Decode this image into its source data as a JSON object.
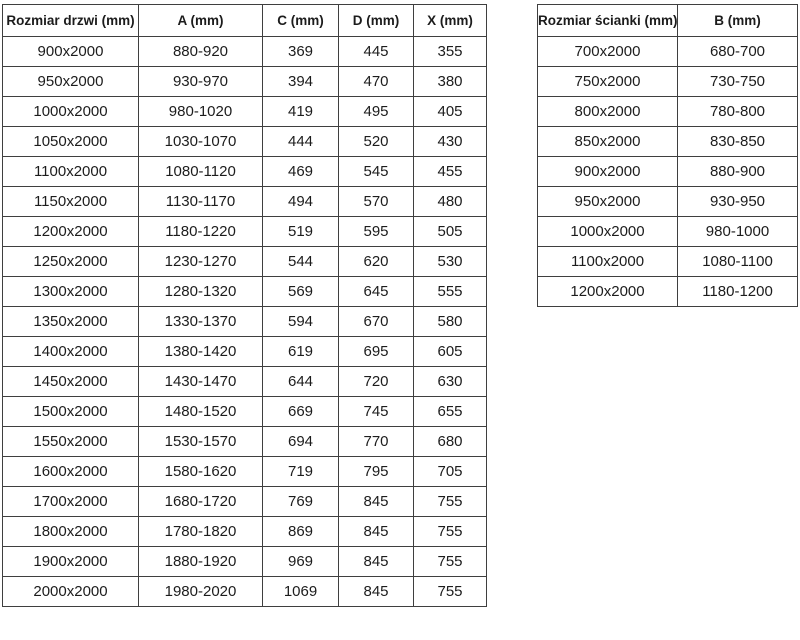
{
  "colors": {
    "background": "#ffffff",
    "border": "#3f3f3f",
    "text": "#1c1c1c"
  },
  "tables": [
    {
      "id": "door-sizes",
      "headers": [
        "Rozmiar drzwi (mm)",
        "A (mm)",
        "C (mm)",
        "D (mm)",
        "X (mm)"
      ],
      "rows": [
        [
          "900x2000",
          "880-920",
          "369",
          "445",
          "355"
        ],
        [
          "950x2000",
          "930-970",
          "394",
          "470",
          "380"
        ],
        [
          "1000x2000",
          "980-1020",
          "419",
          "495",
          "405"
        ],
        [
          "1050x2000",
          "1030-1070",
          "444",
          "520",
          "430"
        ],
        [
          "1100x2000",
          "1080-1120",
          "469",
          "545",
          "455"
        ],
        [
          "1150x2000",
          "1130-1170",
          "494",
          "570",
          "480"
        ],
        [
          "1200x2000",
          "1180-1220",
          "519",
          "595",
          "505"
        ],
        [
          "1250x2000",
          "1230-1270",
          "544",
          "620",
          "530"
        ],
        [
          "1300x2000",
          "1280-1320",
          "569",
          "645",
          "555"
        ],
        [
          "1350x2000",
          "1330-1370",
          "594",
          "670",
          "580"
        ],
        [
          "1400x2000",
          "1380-1420",
          "619",
          "695",
          "605"
        ],
        [
          "1450x2000",
          "1430-1470",
          "644",
          "720",
          "630"
        ],
        [
          "1500x2000",
          "1480-1520",
          "669",
          "745",
          "655"
        ],
        [
          "1550x2000",
          "1530-1570",
          "694",
          "770",
          "680"
        ],
        [
          "1600x2000",
          "1580-1620",
          "719",
          "795",
          "705"
        ],
        [
          "1700x2000",
          "1680-1720",
          "769",
          "845",
          "755"
        ],
        [
          "1800x2000",
          "1780-1820",
          "869",
          "845",
          "755"
        ],
        [
          "1900x2000",
          "1880-1920",
          "969",
          "845",
          "755"
        ],
        [
          "2000x2000",
          "1980-2020",
          "1069",
          "845",
          "755"
        ]
      ]
    },
    {
      "id": "wall-sizes",
      "headers": [
        "Rozmiar ścianki (mm)",
        "B (mm)"
      ],
      "rows": [
        [
          "700x2000",
          "680-700"
        ],
        [
          "750x2000",
          "730-750"
        ],
        [
          "800x2000",
          "780-800"
        ],
        [
          "850x2000",
          "830-850"
        ],
        [
          "900x2000",
          "880-900"
        ],
        [
          "950x2000",
          "930-950"
        ],
        [
          "1000x2000",
          "980-1000"
        ],
        [
          "1100x2000",
          "1080-1100"
        ],
        [
          "1200x2000",
          "1180-1200"
        ]
      ]
    }
  ]
}
